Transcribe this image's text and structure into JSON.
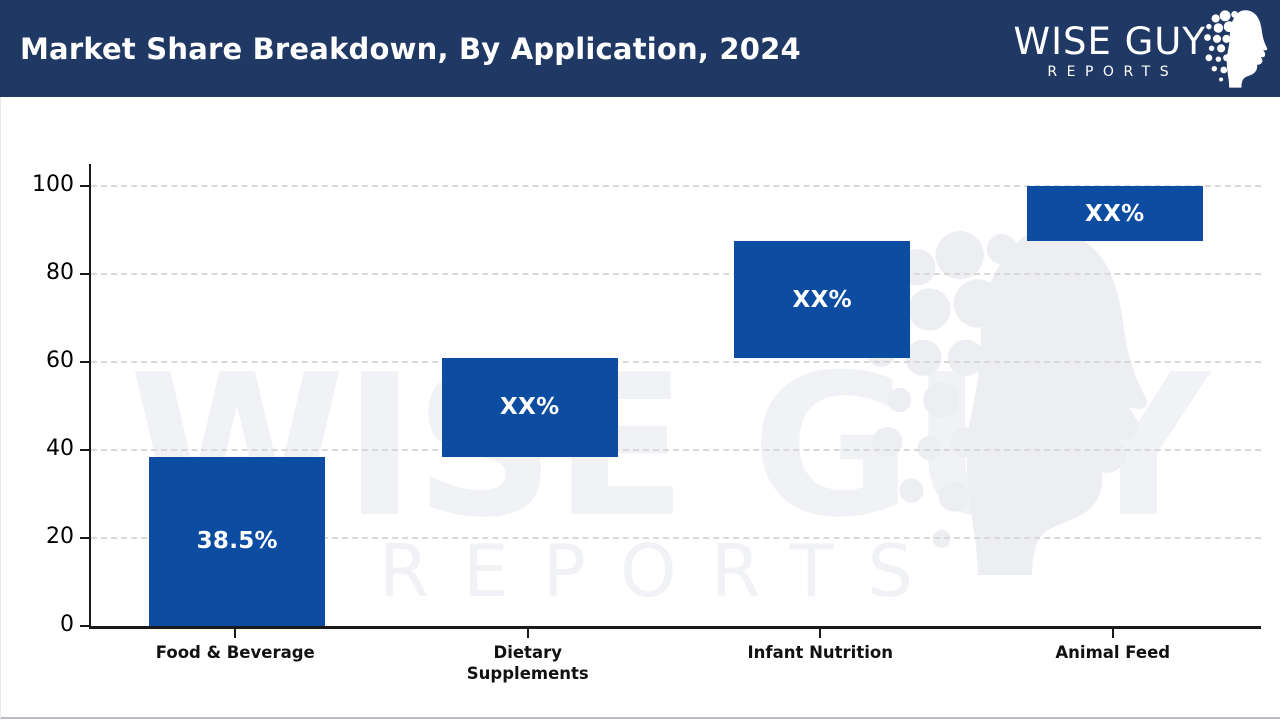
{
  "header": {
    "title": "Market Share Breakdown, By Application, 2024",
    "logo": {
      "line1": "WISE GUY",
      "line2": "REPORTS",
      "head_icon": "dotted-face-profile-icon"
    }
  },
  "watermark": {
    "line1": "WISE GUY",
    "line2": "REPORTS"
  },
  "colors": {
    "header_bg": "#203864",
    "bar": "#0c4da2",
    "grid": "#d9d9d9",
    "axis": "#1a1a1a",
    "bar_label": "#ffffff",
    "watermark_text": "#f1f2f5",
    "watermark_head": "#eceef2"
  },
  "chart_data": {
    "type": "bar",
    "subtype": "waterfall",
    "title": "Market Share Breakdown, By Application, 2024",
    "categories": [
      "Food & Beverage",
      "Dietary Supplements",
      "Infant Nutrition",
      "Animal Feed"
    ],
    "segments": [
      {
        "start": 0,
        "end": 38.5,
        "label": "38.5%"
      },
      {
        "start": 38.5,
        "end": 61,
        "label": "XX%"
      },
      {
        "start": 61,
        "end": 87.4,
        "label": "XX%"
      },
      {
        "start": 87.4,
        "end": 100,
        "label": "XX%"
      }
    ],
    "yticks": [
      0,
      20,
      40,
      60,
      80,
      100
    ],
    "ylim": [
      0,
      105
    ],
    "xlabel": "",
    "ylabel": "",
    "grid": "dashed-horizontal",
    "legend": "none"
  }
}
